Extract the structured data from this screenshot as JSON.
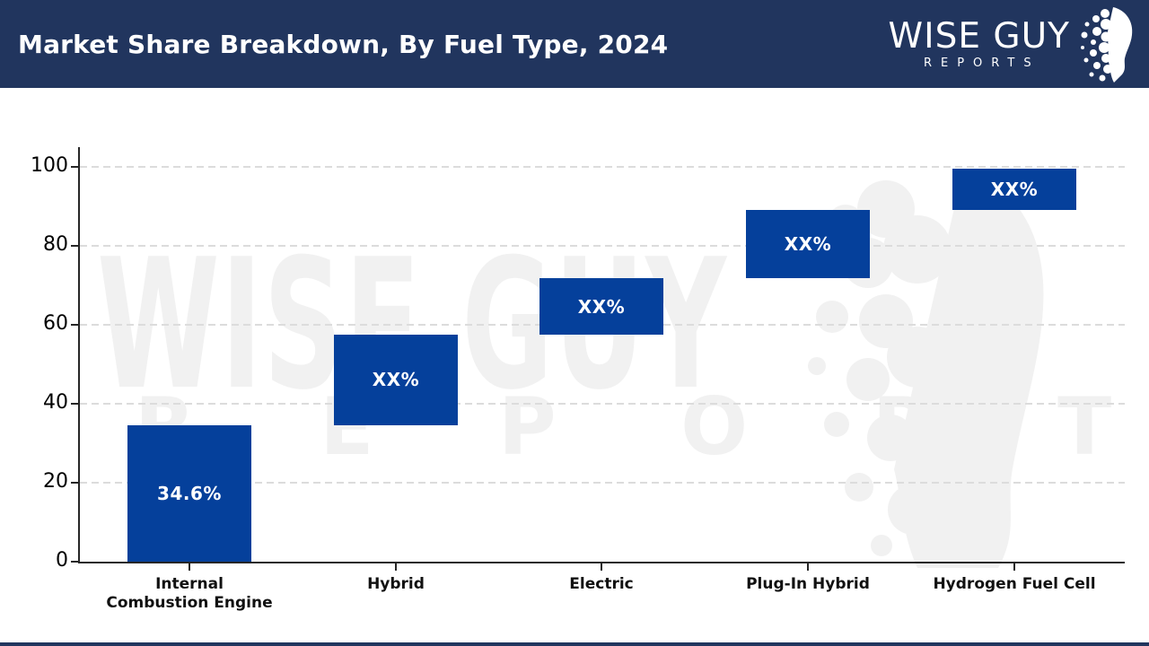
{
  "header": {
    "title": "Market Share Breakdown, By Fuel Type, 2024",
    "brand": {
      "name": "WISE GUY",
      "tagline": "REPORTS"
    }
  },
  "watermark": {
    "line1": "WISE GUY",
    "line2": "R E P O R T S"
  },
  "colors": {
    "header_bg": "#21355E",
    "bar": "#05409B",
    "bar_label_text": "#FFFFFF",
    "gridline": "#DCDCDC",
    "axis": "#262626",
    "watermark_gray": "#F1F1F1"
  },
  "chart_data": {
    "type": "bar",
    "subtype": "waterfall",
    "title": "Market Share Breakdown, By Fuel Type, 2024",
    "xlabel": "",
    "ylabel": "",
    "ylim": [
      0,
      105
    ],
    "yticks": [
      0,
      20,
      40,
      60,
      80,
      100
    ],
    "grid": "horizontal-dashed",
    "unit": "percent",
    "categories": [
      "Internal\nCombustion Engine",
      "Hybrid",
      "Electric",
      "Plug-In Hybrid",
      "Hydrogen Fuel Cell"
    ],
    "segments": [
      {
        "start": 0,
        "end": 34.6,
        "label": "34.6%"
      },
      {
        "start": 34.6,
        "end": 57.5,
        "label": "XX%"
      },
      {
        "start": 57.5,
        "end": 71.8,
        "label": "XX%"
      },
      {
        "start": 71.8,
        "end": 89.1,
        "label": "XX%"
      },
      {
        "start": 89.1,
        "end": 99.6,
        "label": "XX%"
      }
    ]
  }
}
